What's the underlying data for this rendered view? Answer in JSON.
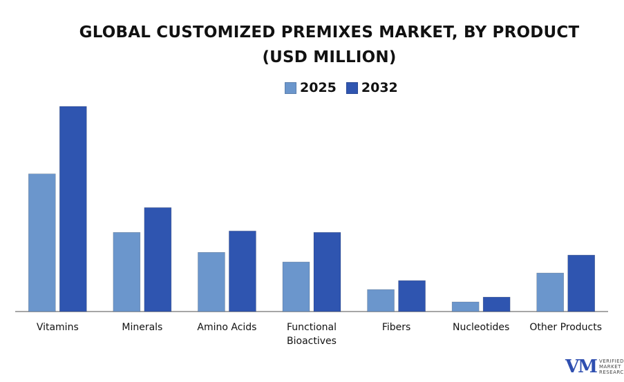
{
  "title_line1": "GLOBAL CUSTOMIZED PREMIXES MARKET, BY PRODUCT",
  "title_line2": "(USD MILLION)",
  "colors": {
    "series2025": "#6b96cc",
    "series2032": "#2f55b0",
    "axis": "#888888"
  },
  "chart_data": {
    "type": "bar",
    "title": "GLOBAL CUSTOMIZED PREMIXES MARKET, BY PRODUCT (USD MILLION)",
    "categories": [
      "Vitamins",
      "Minerals",
      "Amino Acids",
      "Functional Bioactives",
      "Fibers",
      "Nucleotides",
      "Other Products"
    ],
    "category_lines": [
      [
        "Vitamins"
      ],
      [
        "Minerals"
      ],
      [
        "Amino Acids"
      ],
      [
        "Functional",
        "Bioactives"
      ],
      [
        "Fibers"
      ],
      [
        "Nucleotides"
      ],
      [
        "Other Products"
      ]
    ],
    "series": [
      {
        "name": "2025",
        "values": [
          200,
          115,
          86,
          72,
          32,
          14,
          56
        ]
      },
      {
        "name": "2032",
        "values": [
          298,
          151,
          117,
          115,
          45,
          21,
          82
        ]
      }
    ],
    "ylim": [
      0,
      300
    ],
    "xlabel": "",
    "ylabel": "",
    "legend_position": "top-center",
    "grid": false
  },
  "logo": {
    "mark": "VM",
    "line1": "VERIFIED",
    "line2": "MARKET",
    "line3": "RESEARCH"
  }
}
